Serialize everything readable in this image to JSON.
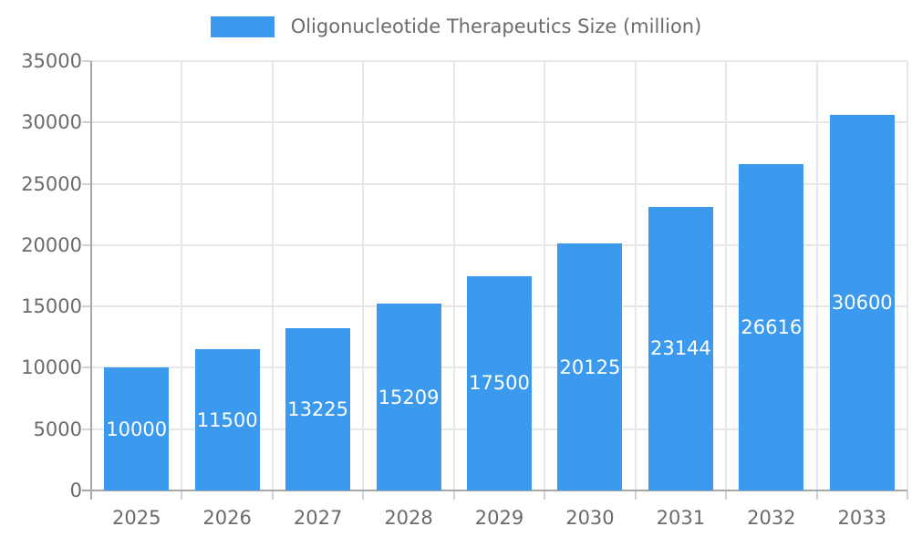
{
  "legend": {
    "items": [
      {
        "label": "Oligonucleotide Therapeutics Size (million)"
      }
    ]
  },
  "theme": {
    "bar_color": "#3b9aed",
    "grid_color": "#e7e7e7",
    "axis_line_color": "#a8a8a8",
    "tick_mark_color": "#d2d2d2",
    "tick_text_color": "#6b6b6b",
    "value_label_color": "#ffffff",
    "background": "#ffffff"
  },
  "chart_data": {
    "type": "bar",
    "title": "Oligonucleotide Therapeutics Size (million)",
    "categories": [
      "2025",
      "2026",
      "2027",
      "2028",
      "2029",
      "2030",
      "2031",
      "2032",
      "2033"
    ],
    "series": [
      {
        "name": "Oligonucleotide Therapeutics Size (million)",
        "values": [
          10000,
          11500,
          13225,
          15209,
          17500,
          20125,
          23144,
          26616,
          30600
        ]
      }
    ],
    "value_labels": [
      "10000",
      "11500",
      "13225",
      "15209",
      "17500",
      "20125",
      "23144",
      "26616",
      "30600"
    ],
    "xlabel": "",
    "ylabel": "",
    "ylim": [
      0,
      35000
    ],
    "y_ticks": [
      0,
      5000,
      10000,
      15000,
      20000,
      25000,
      30000,
      35000
    ],
    "grid": true,
    "legend_position": "top"
  }
}
